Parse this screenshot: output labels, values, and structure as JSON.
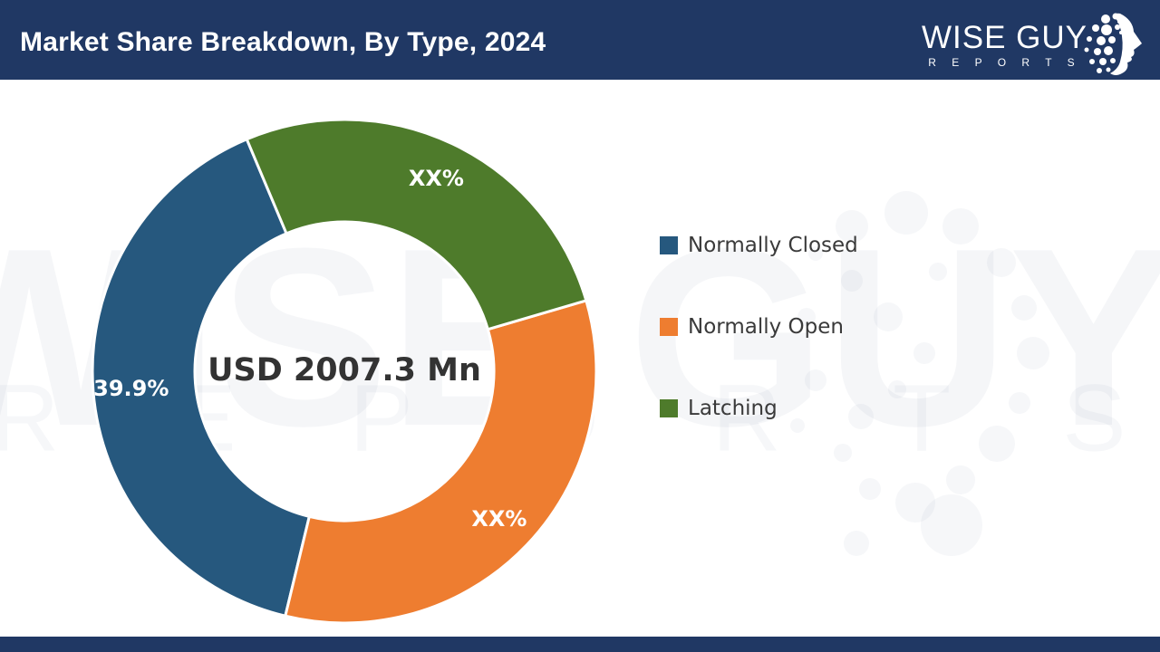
{
  "header": {
    "title": "Market Share Breakdown, By Type, 2024",
    "bg_color": "#203864",
    "logo": {
      "line1": "WISE GUY",
      "line2": "R E P O R T S"
    }
  },
  "watermark": {
    "line1": "WISE GUY",
    "line2": "R E P O R T S"
  },
  "chart_data": {
    "type": "donut",
    "title": "Market Share Breakdown, By Type, 2024",
    "center_label": "USD 2007.3 Mn",
    "legend_position": "right",
    "direction": "counterclockwise",
    "start_clock_deg": 337.2,
    "segments": [
      {
        "label": "Normally Closed",
        "display_pct": "39.9%",
        "pct": 39.9,
        "color": "#26587E"
      },
      {
        "label": "Normally Open",
        "display_pct": "XX%",
        "pct": 33.3,
        "color": "#EE7D30"
      },
      {
        "label": "Latching",
        "display_pct": "XX%",
        "pct": 26.8,
        "color": "#4E7B2B"
      }
    ]
  },
  "footer": {
    "bg_color": "#203864"
  }
}
